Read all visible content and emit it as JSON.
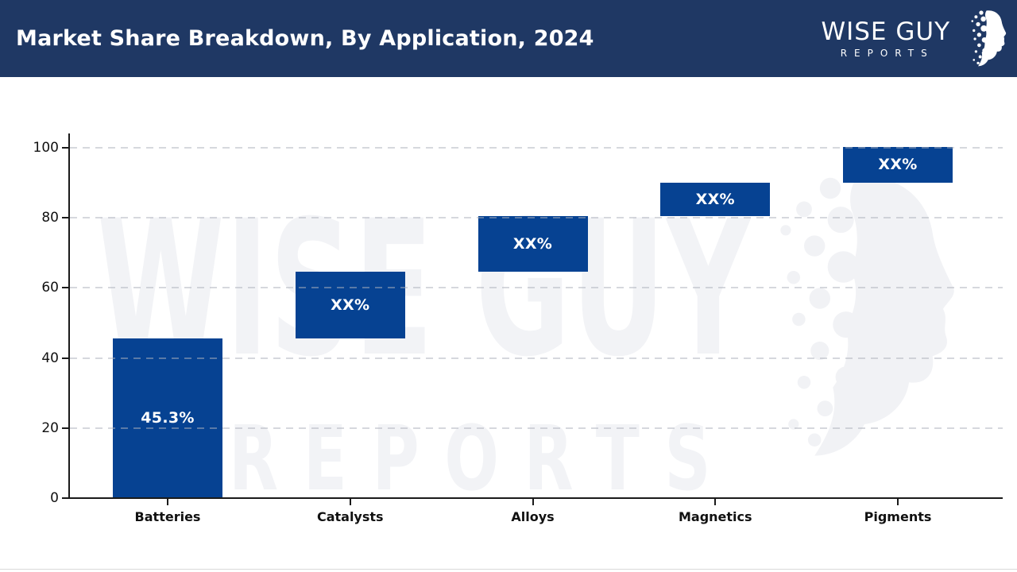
{
  "header": {
    "title": "Market Share Breakdown, By Application, 2024",
    "bg_color": "#1f3864",
    "logo": {
      "line1": "WISE GUY",
      "line2": "REPORTS"
    }
  },
  "watermark": {
    "line1": "WISE GUY",
    "line2": "REPORTS"
  },
  "chart_data": {
    "type": "bar",
    "subtype": "waterfall",
    "title": "Market Share Breakdown, By Application, 2024",
    "categories": [
      "Batteries",
      "Catalysts",
      "Alloys",
      "Magnetics",
      "Pigments"
    ],
    "segments": [
      {
        "category": "Batteries",
        "start": 0,
        "end": 45.3,
        "label": "45.3%"
      },
      {
        "category": "Catalysts",
        "start": 45.3,
        "end": 64.5,
        "label": "XX%"
      },
      {
        "category": "Alloys",
        "start": 64.5,
        "end": 80.2,
        "label": "XX%"
      },
      {
        "category": "Magnetics",
        "start": 80.2,
        "end": 89.8,
        "label": "XX%"
      },
      {
        "category": "Pigments",
        "start": 89.8,
        "end": 100,
        "label": "XX%"
      }
    ],
    "ylim": [
      0,
      100
    ],
    "yticks": [
      0,
      20,
      40,
      60,
      80,
      100
    ],
    "grid": "horizontal-dashed",
    "legend": false,
    "xlabel": "",
    "ylabel": "",
    "bar_color": "#064292",
    "bar_label_color": "#ffffff",
    "axis_color": "#1a1a1a"
  }
}
